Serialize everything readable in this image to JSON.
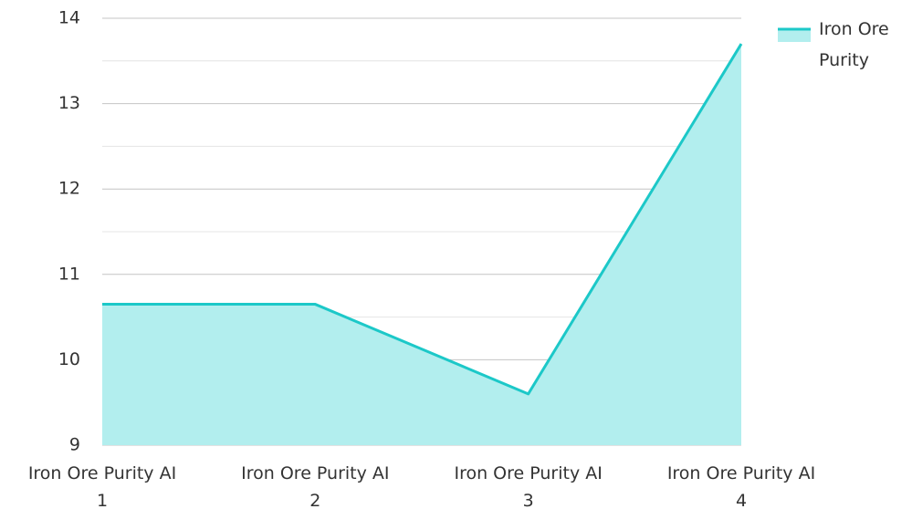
{
  "chart_data": {
    "type": "area",
    "categories": [
      "Iron Ore Purity AI 1",
      "Iron Ore Purity AI 2",
      "Iron Ore Purity AI 3",
      "Iron Ore Purity AI 4"
    ],
    "series": [
      {
        "name": "Iron Ore Purity",
        "color": "#1cc8c8",
        "fill": "#b2eeee",
        "values": [
          10.65,
          10.65,
          9.6,
          13.7
        ]
      }
    ],
    "ylim": [
      9,
      14
    ],
    "yticks": [
      9,
      10,
      11,
      12,
      13,
      14
    ],
    "yticks_minor": [
      9.5,
      10.5,
      11.5,
      12.5,
      13.5
    ],
    "grid": true,
    "legend": "top-right"
  }
}
